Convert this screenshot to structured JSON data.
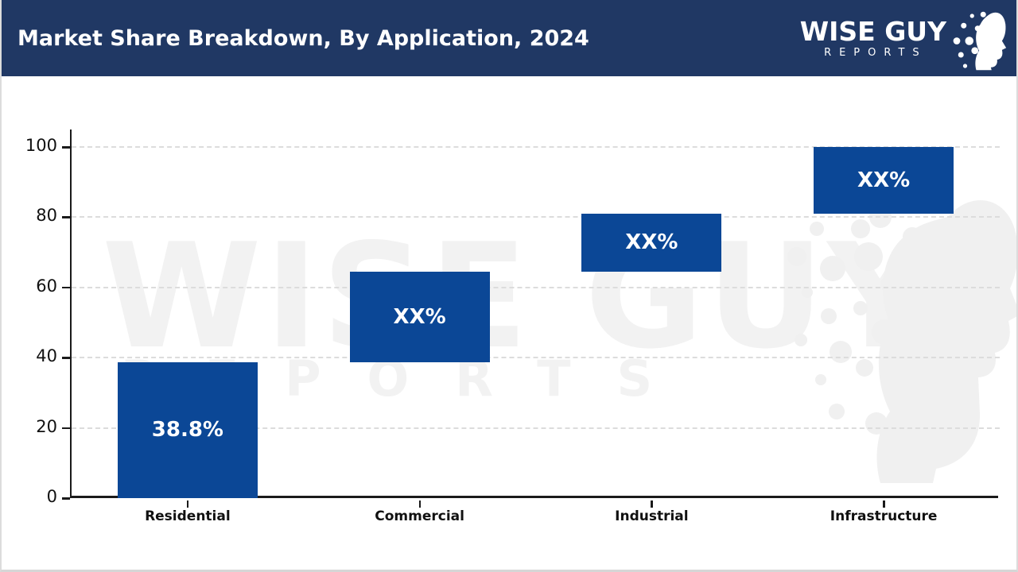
{
  "header": {
    "title": "Market Share Breakdown, By Application, 2024",
    "bg_color": "#203864",
    "brand": {
      "line1": "WISE GUY",
      "line2": "REPORTS"
    }
  },
  "watermark": {
    "line1": "WISE GUY",
    "line2": "REPORTS"
  },
  "chart_data": {
    "type": "bar",
    "subtype": "waterfall",
    "title": "Market Share Breakdown, By Application, 2024",
    "categories": [
      "Residential",
      "Commercial",
      "Industrial",
      "Infrastructure"
    ],
    "segments": [
      {
        "category": "Residential",
        "start": 0,
        "end": 38.8,
        "label": "38.8%"
      },
      {
        "category": "Commercial",
        "start": 38.8,
        "end": 64.6,
        "label": "XX%"
      },
      {
        "category": "Industrial",
        "start": 64.6,
        "end": 81.0,
        "label": "XX%"
      },
      {
        "category": "Infrastructure",
        "start": 81.0,
        "end": 100,
        "label": "XX%"
      }
    ],
    "xlabel": "",
    "ylabel": "",
    "y_ticks": [
      0,
      20,
      40,
      60,
      80,
      100
    ],
    "ylim": [
      0,
      105
    ],
    "grid": true,
    "legend": false,
    "bar_color": "#0b4796",
    "bar_label_color": "#ffffff",
    "axis_color": "#1a1a1a",
    "grid_color": "#dcdcdc",
    "tick_label_color": "#111111"
  }
}
